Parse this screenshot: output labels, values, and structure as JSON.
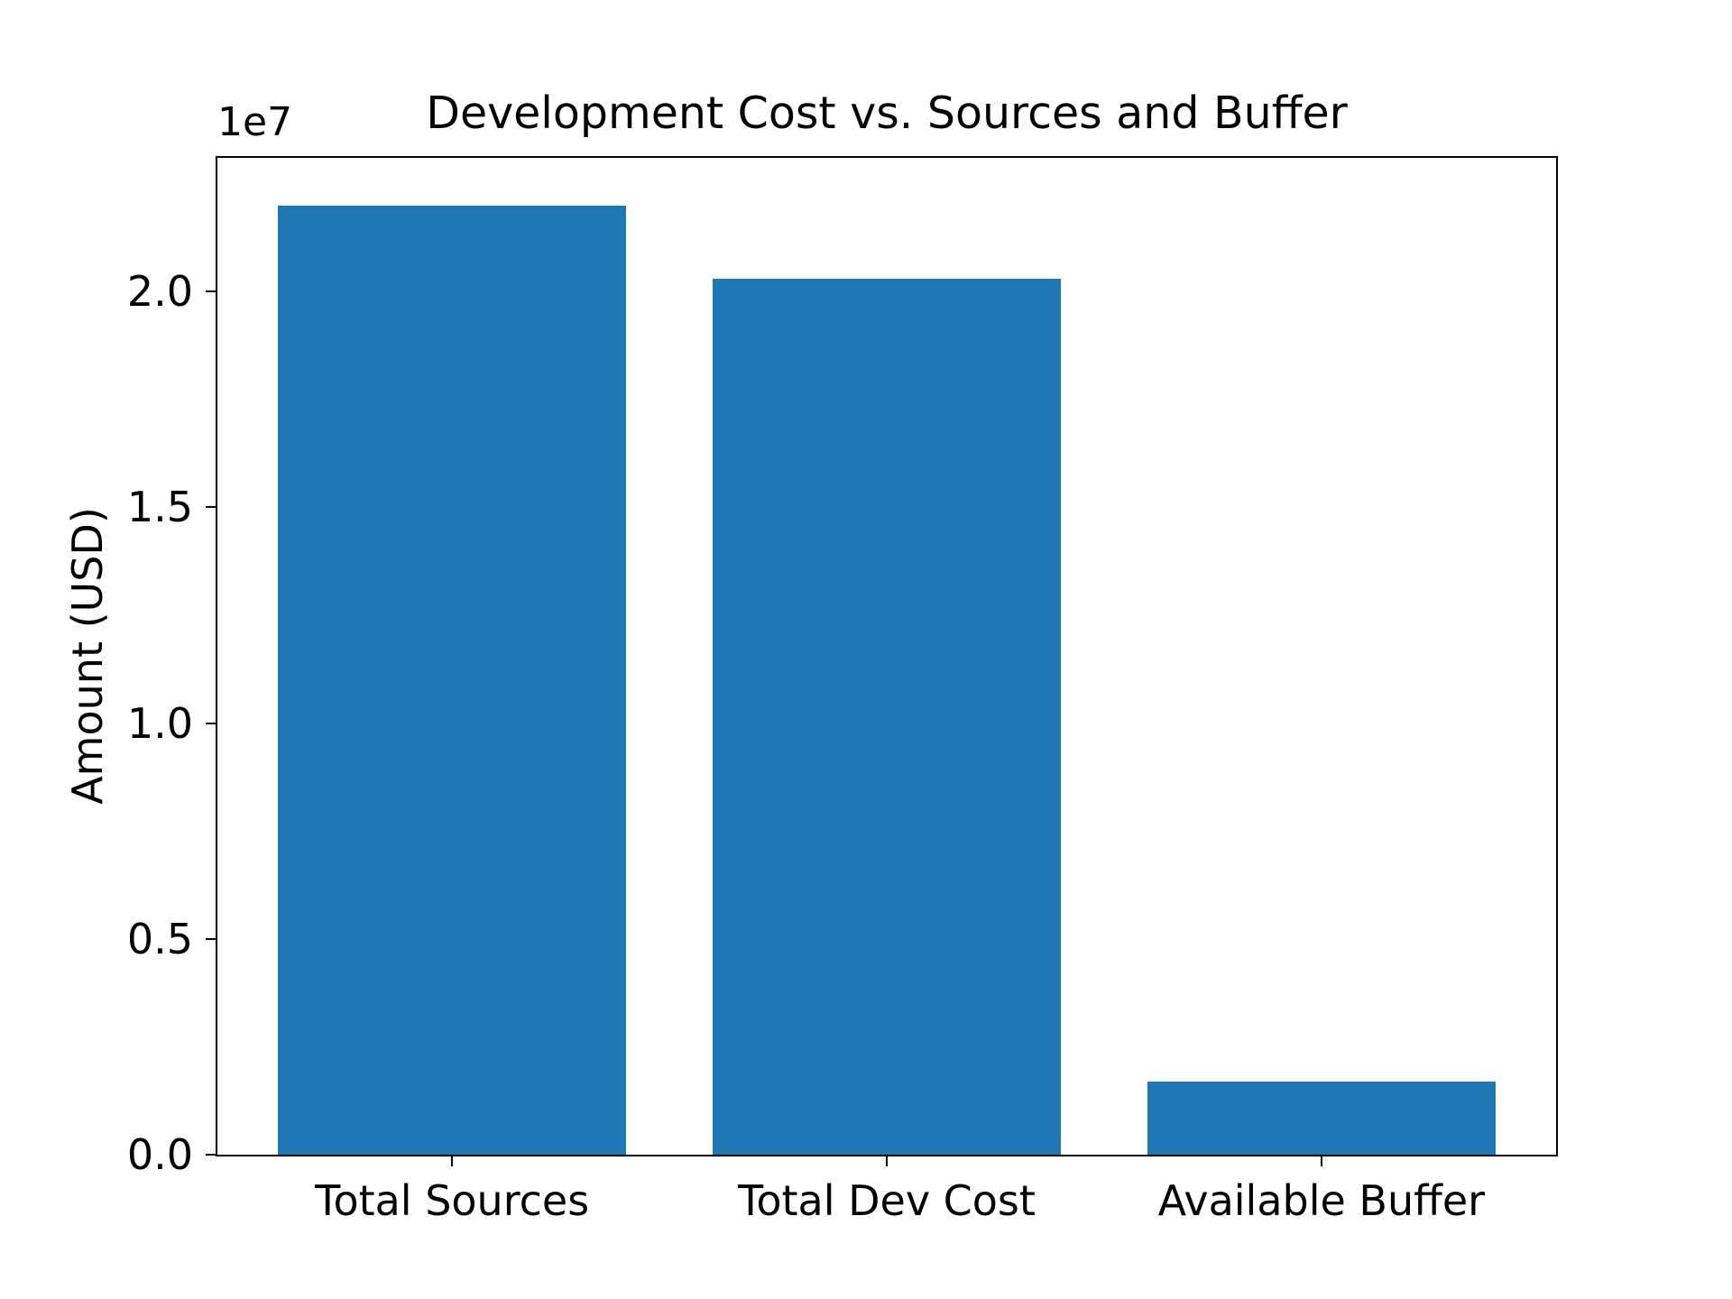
{
  "figure": {
    "title": "Development Cost vs. Sources and Buffer",
    "y_axis_label": "Amount (USD)",
    "y_offset_text": "1e7",
    "background_color": "#ffffff",
    "text_color": "#000000"
  },
  "chart_data": {
    "type": "bar",
    "title": "Development Cost vs. Sources and Buffer",
    "xlabel": "",
    "ylabel": "Amount (USD)",
    "categories": [
      "Total Sources",
      "Total Dev Cost",
      "Available Buffer"
    ],
    "values": [
      22000000,
      20300000,
      1700000
    ],
    "bar_color": "#1f77b4",
    "bar_width_units": 0.8,
    "xlim": [
      -0.54,
      2.54
    ],
    "ylim": [
      0,
      23100000
    ],
    "yticks": [
      {
        "value": 0,
        "label": "0.0"
      },
      {
        "value": 5000000,
        "label": "0.5"
      },
      {
        "value": 10000000,
        "label": "1.0"
      },
      {
        "value": 15000000,
        "label": "1.5"
      },
      {
        "value": 20000000,
        "label": "2.0"
      }
    ],
    "y_scale_offset_label": "1e7",
    "grid": false,
    "legend": null
  }
}
